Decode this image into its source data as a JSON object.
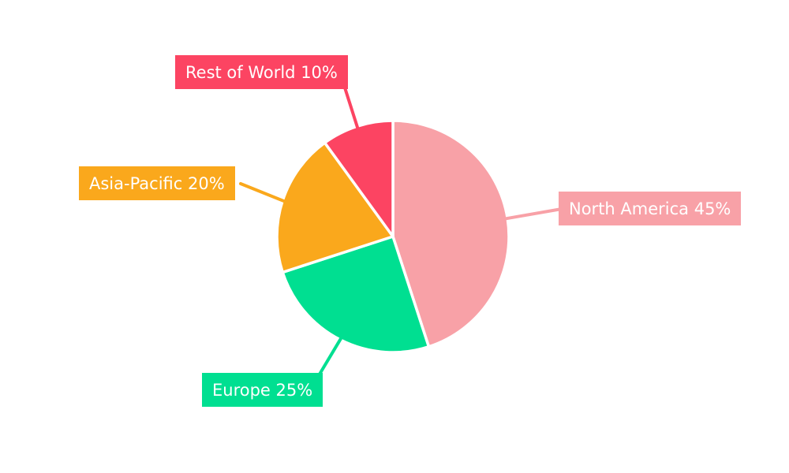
{
  "chart_data": {
    "type": "pie",
    "title": "",
    "direction": "clockwise",
    "start_angle_deg": 0,
    "legend_position": "callout-labels",
    "label_text_color": "#ffffff",
    "separator_color": "#ffffff",
    "background_color": "#ffffff",
    "slices": [
      {
        "label": "North America",
        "value": 45,
        "unit": "%",
        "display": "North America 45%",
        "color": "#f8a1a7"
      },
      {
        "label": "Europe",
        "value": 25,
        "unit": "%",
        "display": "Europe 25%",
        "color": "#00df91"
      },
      {
        "label": "Asia-Pacific",
        "value": 20,
        "unit": "%",
        "display": "Asia-Pacific 20%",
        "color": "#faa81c"
      },
      {
        "label": "Rest of World",
        "value": 10,
        "unit": "%",
        "display": "Rest of World 10%",
        "color": "#fc4462"
      }
    ]
  }
}
